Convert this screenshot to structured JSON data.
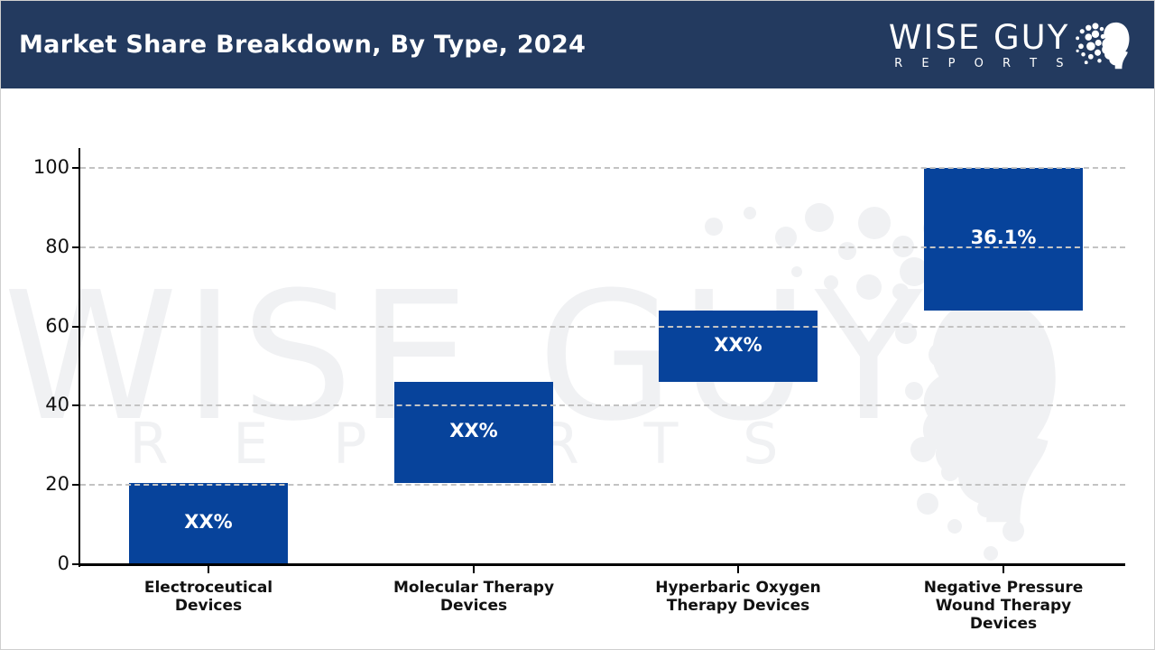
{
  "header": {
    "title": "Market Share Breakdown, By Type, 2024",
    "bg_color": "#233A5F",
    "logo": {
      "line1": "WISE GUY",
      "line2": "R E P O R T S"
    }
  },
  "watermark": {
    "line1": "WISE GUY",
    "line2": "R E P O R T S",
    "color": "#F0F1F3"
  },
  "chart_data": {
    "type": "bar",
    "subtype": "waterfall",
    "title": "Market Share Breakdown, By Type, 2024",
    "categories": [
      "Electroceutical Devices",
      "Molecular Therapy Devices",
      "Hyperbaric Oxygen Therapy Devices",
      "Negative Pressure Wound Therapy Devices"
    ],
    "category_lines": [
      "Electroceutical\nDevices",
      "Molecular Therapy\nDevices",
      "Hyperbaric Oxygen\nTherapy Devices",
      "Negative Pressure\nWound Therapy\nDevices"
    ],
    "segments": [
      {
        "label": "XX%",
        "value": 20.4,
        "start": 0,
        "end": 20.4
      },
      {
        "label": "XX%",
        "value": 25.5,
        "start": 20.4,
        "end": 45.9
      },
      {
        "label": "XX%",
        "value": 18.0,
        "start": 45.9,
        "end": 63.9
      },
      {
        "label": "36.1%",
        "value": 36.1,
        "start": 63.9,
        "end": 100
      }
    ],
    "yticks": [
      0,
      20,
      40,
      60,
      80,
      100
    ],
    "ylim": [
      0,
      104.5
    ],
    "grid": true,
    "legend": "none",
    "bar_color": "#07439B",
    "bar_label_color": "#FFFFFF",
    "grid_color": "#C3C3C3",
    "axis_color": "#000000"
  }
}
